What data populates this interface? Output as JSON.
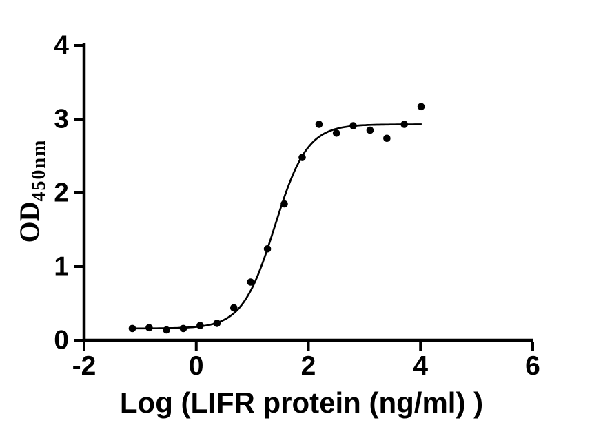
{
  "figure": {
    "background": "#ffffff",
    "axis_color": "#000000"
  },
  "chart_data": {
    "type": "scatter",
    "title": "",
    "xlabel": "Log (LIFR protein (ng/ml) )",
    "ylabel_base": "OD",
    "ylabel_subscript": "450nm",
    "xlim": [
      -2,
      6
    ],
    "ylim": [
      0,
      4
    ],
    "xticks": [
      -2,
      0,
      2,
      4,
      6
    ],
    "yticks": [
      0,
      1,
      2,
      3,
      4
    ],
    "grid": false,
    "legend": false,
    "marker_color": "#000000",
    "line_color": "#000000",
    "points": {
      "x": [
        -1.14,
        -0.84,
        -0.53,
        -0.23,
        0.07,
        0.37,
        0.67,
        0.97,
        1.27,
        1.57,
        1.89,
        2.19,
        2.5,
        2.8,
        3.1,
        3.4,
        3.71,
        4.01
      ],
      "y": [
        0.16,
        0.17,
        0.14,
        0.16,
        0.2,
        0.23,
        0.44,
        0.79,
        1.24,
        1.85,
        2.48,
        2.93,
        2.81,
        2.91,
        2.85,
        2.74,
        2.93,
        3.17
      ]
    },
    "fit_curve": {
      "model": "4PL-sigmoid",
      "bottom": 0.16,
      "top": 2.93,
      "log_ec50": 1.4,
      "hill_slope": 1.5,
      "x_start": -1.14,
      "x_end": 4.05
    }
  }
}
